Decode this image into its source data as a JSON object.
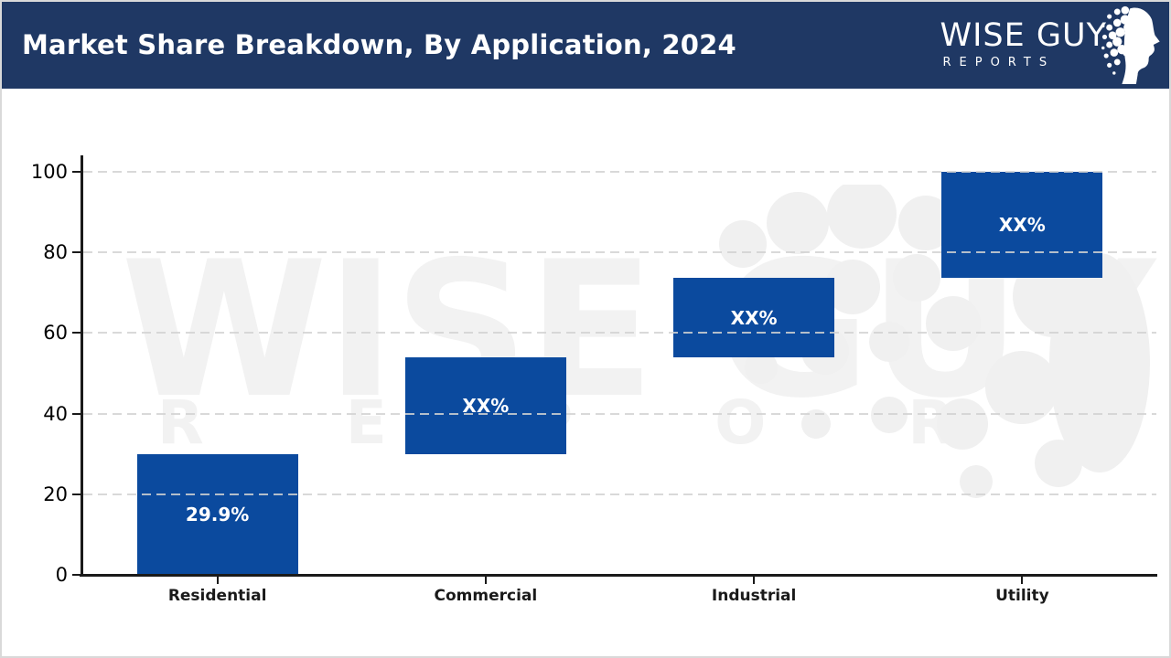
{
  "header": {
    "title": "Market Share Breakdown, By Application, 2024",
    "bg_color": "#1f3864",
    "logo": {
      "line1": "WISE GUY",
      "line2": "REPORTS",
      "head_icon": "wiseguy-dotted-head"
    }
  },
  "watermark": {
    "line1": "WISE GUY",
    "line2": "R E P O R T S",
    "head_icon": "wiseguy-dotted-head-large"
  },
  "chart_data": {
    "type": "bar",
    "subtype": "waterfall",
    "title": "Market Share Breakdown, By Application, 2024",
    "categories": [
      "Residential",
      "Commercial",
      "Industrial",
      "Utility"
    ],
    "segments": [
      {
        "category": "Residential",
        "start": 0,
        "end": 29.9,
        "label": "29.9%"
      },
      {
        "category": "Commercial",
        "start": 29.9,
        "end": 53.9,
        "label": "XX%"
      },
      {
        "category": "Industrial",
        "start": 53.9,
        "end": 73.6,
        "label": "XX%"
      },
      {
        "category": "Utility",
        "start": 73.6,
        "end": 100,
        "label": "XX%"
      }
    ],
    "xlabel": "",
    "ylabel": "",
    "ylim": [
      0,
      100
    ],
    "yticks": [
      0,
      20,
      40,
      60,
      80,
      100
    ],
    "grid": "horizontal-dashed",
    "legend": null,
    "bar_color": "#0b4a9e",
    "bar_label_color": "#ffffff",
    "axis_color": "#1a1a1a",
    "gridline_color": "#d2d2d2"
  }
}
